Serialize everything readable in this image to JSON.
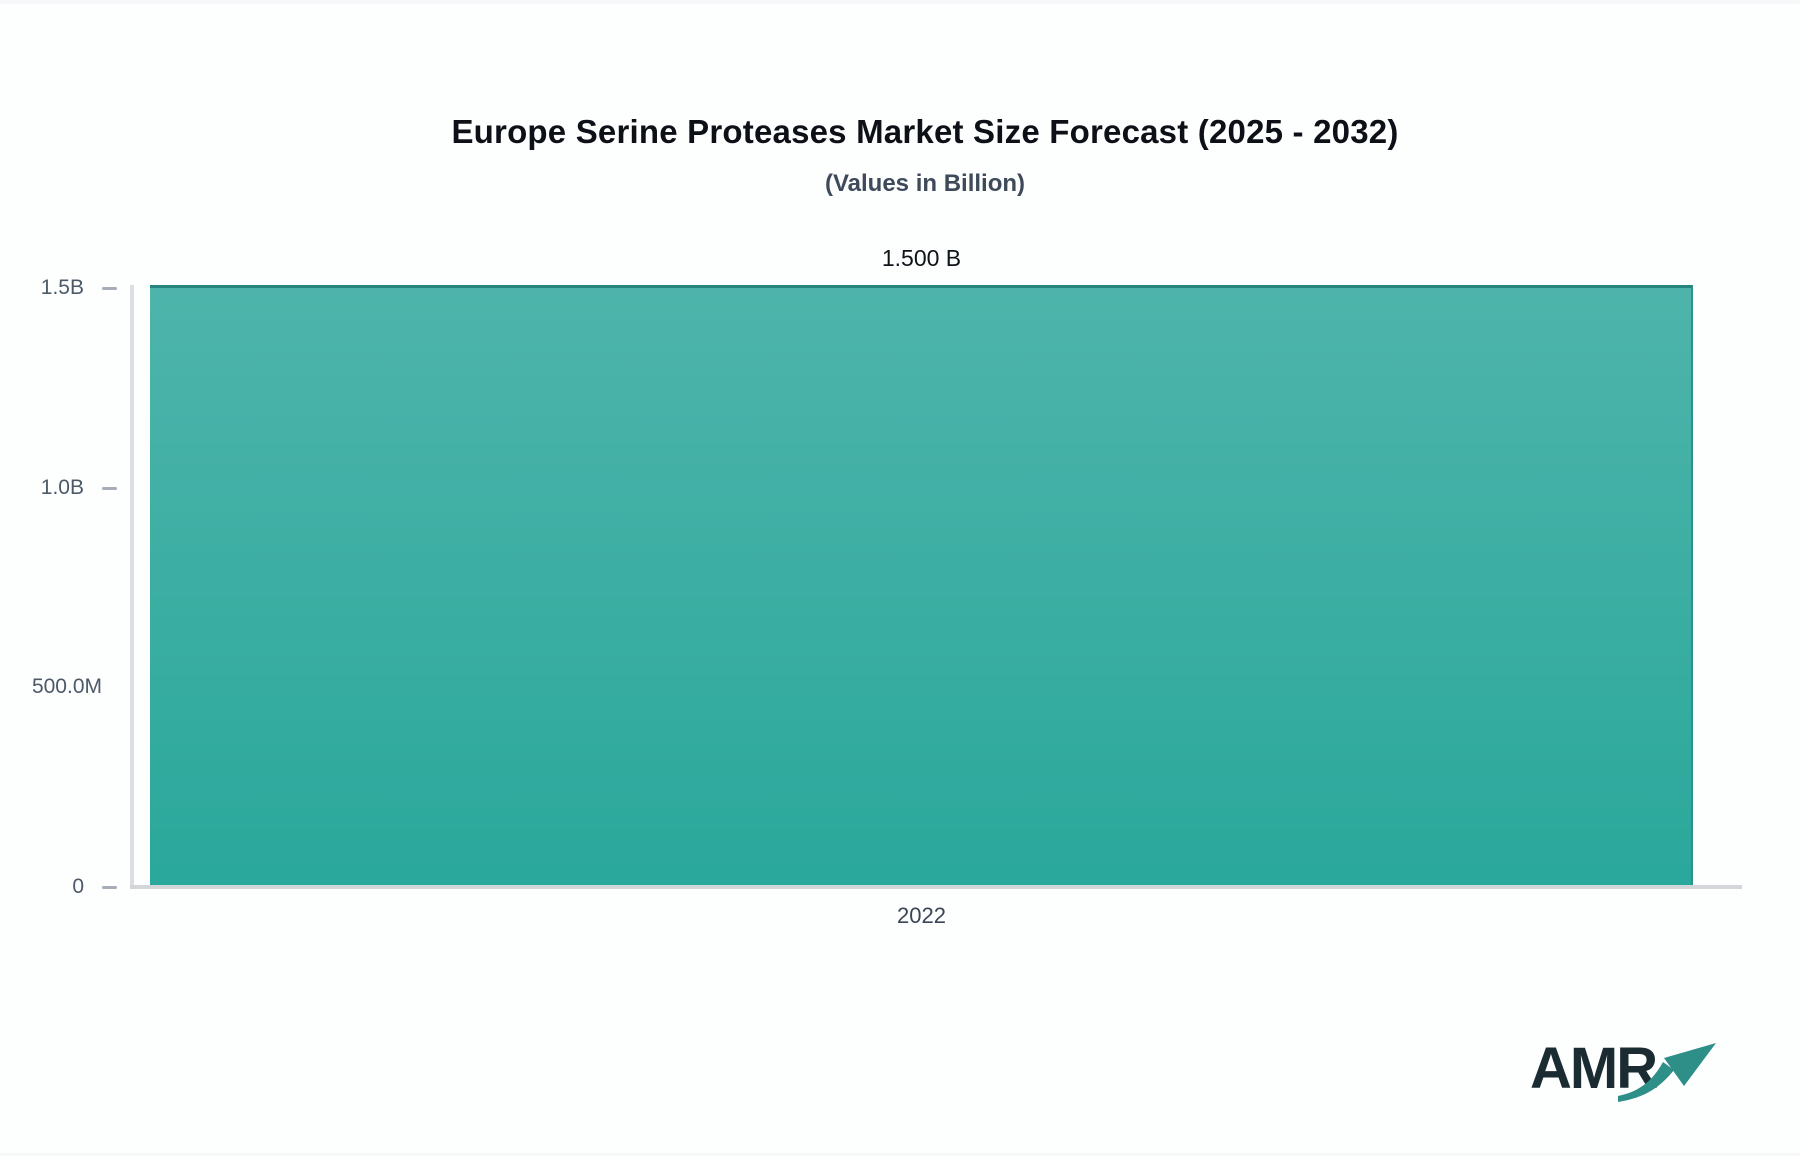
{
  "chart_data": {
    "type": "bar",
    "title": "Europe Serine Proteases Market Size Forecast (2025 - 2032)",
    "subtitle": "(Values in Billion)",
    "categories": [
      "2022"
    ],
    "values": [
      1.5
    ],
    "value_labels": [
      "1.500 B"
    ],
    "xlabel": "",
    "ylabel": "",
    "ylim": [
      0,
      1.5
    ],
    "grid": false,
    "legend": "none",
    "colors": {
      "bar_gradient_top": "#4eb4ab",
      "bar_gradient_bottom": "#2aa89b",
      "bar_border_top": "#26867d",
      "bar_border_right": "#2d9289",
      "axis_line": "#d6dade",
      "tick_dash": "#a6adb6",
      "axis_label": "#4e5968",
      "title_color": "#0d1117"
    }
  },
  "y_axis": {
    "ticks": [
      {
        "value": 1.5,
        "label": "1.5B",
        "dash": true
      },
      {
        "value": 1.0,
        "label": "1.0B",
        "dash": true
      },
      {
        "value": 0.5,
        "label": "500.0M",
        "dash": false
      },
      {
        "value": 0,
        "label": "0",
        "dash": true
      }
    ]
  },
  "x_axis": {
    "labels": [
      "2022"
    ]
  },
  "logo": {
    "text": "AMR",
    "arrow_color": "#2e8e88",
    "text_color": "#1a2b31"
  }
}
